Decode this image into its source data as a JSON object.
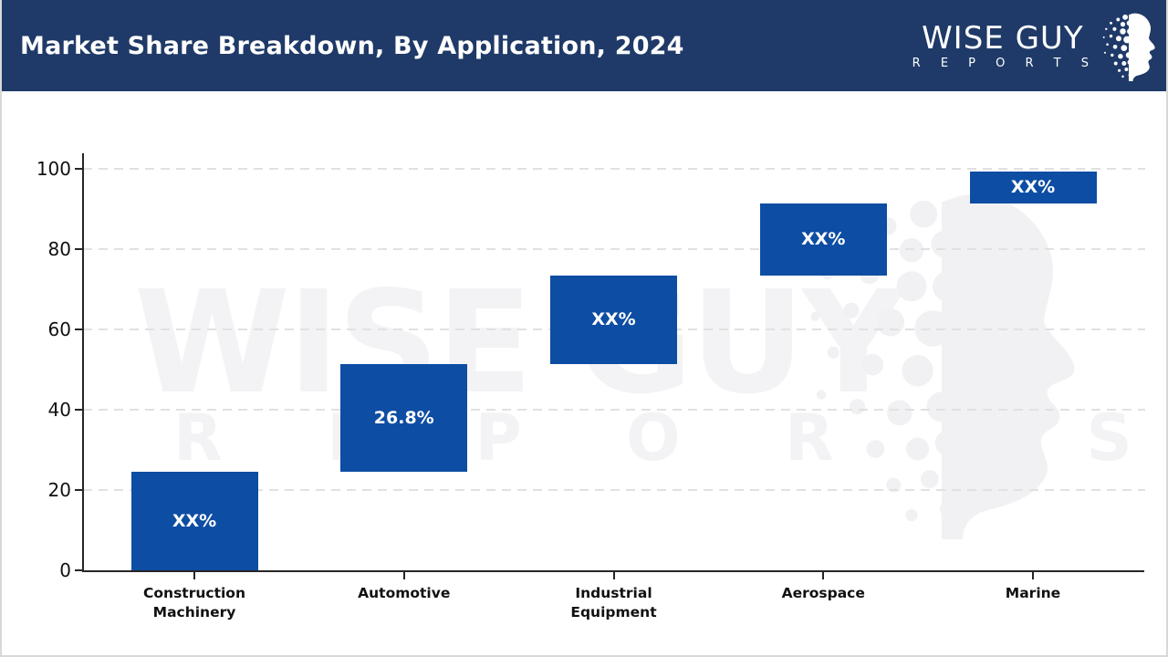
{
  "header": {
    "title": "Market Share Breakdown, By Application, 2024",
    "bg_color": "#1f3a68",
    "logo": {
      "line1": "WISE GUY",
      "line2": "R E P O R T S"
    }
  },
  "watermark": {
    "line1": "WISE GUY",
    "line2": "R E P O R T S"
  },
  "chart_data": {
    "type": "bar",
    "subtype": "waterfall-floating-bars",
    "title": "Market Share Breakdown, By Application, 2024",
    "xlabel": "",
    "ylabel": "",
    "ylim": [
      0,
      105
    ],
    "yticks": [
      0,
      20,
      40,
      60,
      80,
      100
    ],
    "grid": "horizontal-dashed",
    "legend": "none",
    "bar_color": "#0d4da3",
    "bar_label_color": "#ffffff",
    "categories": [
      "Construction Machinery",
      "Automotive",
      "Industrial Equipment",
      "Aerospace",
      "Marine"
    ],
    "category_label_lines": [
      [
        "Construction",
        "Machinery"
      ],
      [
        "Automotive"
      ],
      [
        "Industrial",
        "Equipment"
      ],
      [
        "Aerospace"
      ],
      [
        "Marine"
      ]
    ],
    "segments": [
      {
        "category": "Construction Machinery",
        "start": 0,
        "end": 24.6,
        "label": "XX%"
      },
      {
        "category": "Automotive",
        "start": 24.6,
        "end": 51.4,
        "label": "26.8%"
      },
      {
        "category": "Industrial Equipment",
        "start": 51.4,
        "end": 73.5,
        "label": "XX%"
      },
      {
        "category": "Aerospace",
        "start": 73.5,
        "end": 91.4,
        "label": "XX%"
      },
      {
        "category": "Marine",
        "start": 91.4,
        "end": 99.4,
        "label": "XX%"
      }
    ]
  }
}
